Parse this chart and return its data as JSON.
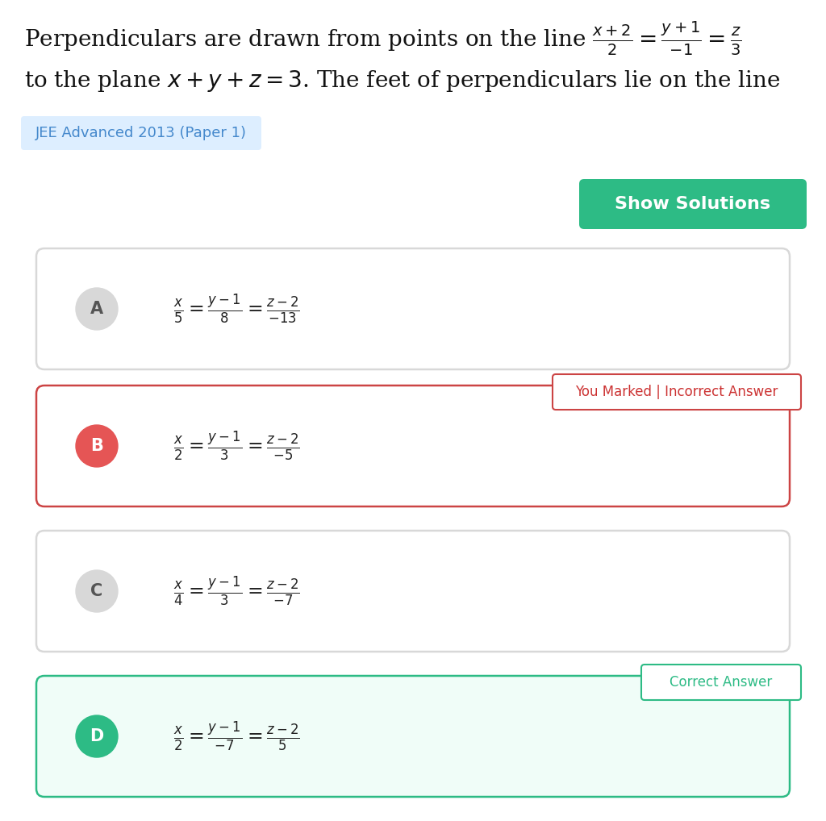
{
  "bg_color": "#ffffff",
  "tag_text": "JEE Advanced 2013 (Paper 1)",
  "tag_bg": "#ddeeff",
  "tag_text_color": "#4488cc",
  "show_solutions_text": "Show Solutions",
  "show_solutions_bg": "#2dbb85",
  "show_solutions_text_color": "#ffffff",
  "options": [
    {
      "label": "A",
      "formula": "$\\frac{x}{5} = \\frac{y-1}{8} = \\frac{z-2}{-13}$",
      "label_bg": "#d8d8d8",
      "label_text_color": "#555555",
      "border_color": "#d8d8d8",
      "box_bg": "#ffffff",
      "status": "normal"
    },
    {
      "label": "B",
      "formula": "$\\frac{x}{2} = \\frac{y-1}{3} = \\frac{z-2}{-5}$",
      "label_bg": "#e55555",
      "label_text_color": "#ffffff",
      "border_color": "#cc4444",
      "box_bg": "#ffffff",
      "status": "incorrect",
      "status_text": "You Marked | Incorrect Answer",
      "status_text_color": "#cc3333",
      "status_border": "#cc4444"
    },
    {
      "label": "C",
      "formula": "$\\frac{x}{4} = \\frac{y-1}{3} = \\frac{z-2}{-7}$",
      "label_bg": "#d8d8d8",
      "label_text_color": "#555555",
      "border_color": "#d8d8d8",
      "box_bg": "#ffffff",
      "status": "normal"
    },
    {
      "label": "D",
      "formula": "$\\frac{x}{2} = \\frac{y-1}{-7} = \\frac{z-2}{5}$",
      "label_bg": "#2dbb85",
      "label_text_color": "#ffffff",
      "border_color": "#2dbb85",
      "box_bg": "#f0fdf8",
      "status": "correct",
      "status_text": "Correct Answer",
      "status_text_color": "#2dbb85",
      "status_border": "#2dbb85"
    }
  ]
}
